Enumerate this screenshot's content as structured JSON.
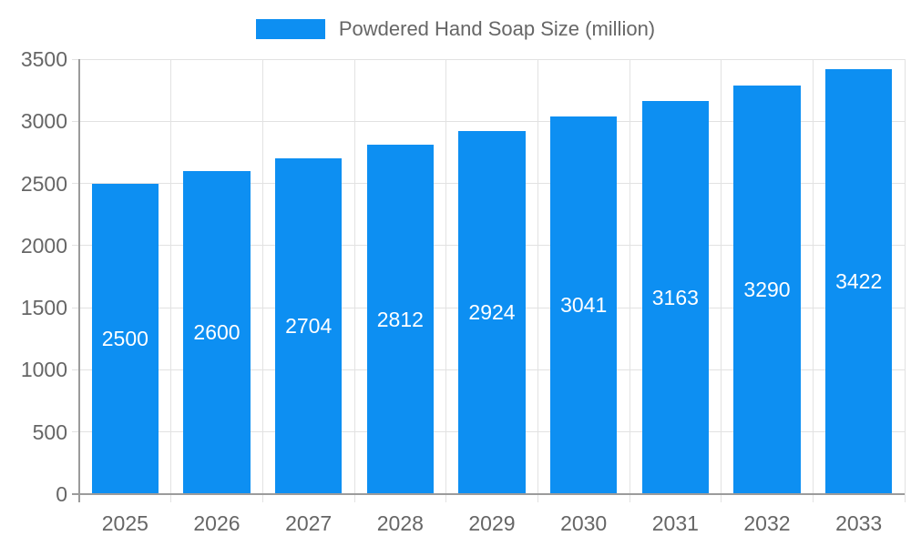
{
  "chart_data": {
    "type": "bar",
    "title": "",
    "categories": [
      "2025",
      "2026",
      "2027",
      "2028",
      "2029",
      "2030",
      "2031",
      "2032",
      "2033"
    ],
    "series": [
      {
        "name": "Powdered Hand Soap Size (million)",
        "values": [
          2500,
          2600,
          2704,
          2812,
          2924,
          3041,
          3163,
          3290,
          3422
        ]
      }
    ],
    "xlabel": "",
    "ylabel": "",
    "ylim": [
      0,
      3500
    ],
    "yticks": [
      0,
      500,
      1000,
      1500,
      2000,
      2500,
      3000,
      3500
    ],
    "grid": true,
    "legend_position": "top",
    "bar_labels_inside": true,
    "colors": {
      "bar": "#0d8ff2",
      "grid": "#e2e2e2",
      "axis": "#9b9b9b",
      "text": "#666666",
      "bar_label": "#ffffff",
      "background": "#ffffff"
    }
  }
}
